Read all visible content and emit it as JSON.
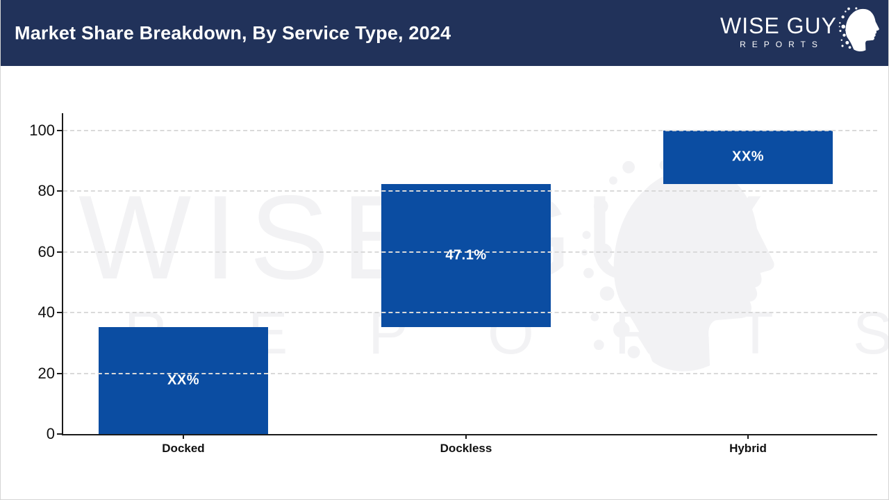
{
  "header": {
    "title": "Market Share Breakdown, By Service Type, 2024",
    "logo": {
      "wordmark": "WISE GUY",
      "sub": "REPORTS"
    }
  },
  "chart_data": {
    "type": "bar",
    "variant": "floating-segment-waterfall",
    "title": "Market Share Breakdown, By Service Type, 2024",
    "categories": [
      "Docked",
      "Dockless",
      "Hybrid"
    ],
    "series": [
      {
        "name": "Market share by service type",
        "segments": [
          {
            "category": "Docked",
            "start": 0,
            "end": 35.3,
            "label": "XX%"
          },
          {
            "category": "Dockless",
            "start": 35.3,
            "end": 82.4,
            "label": "47.1%"
          },
          {
            "category": "Hybrid",
            "start": 82.4,
            "end": 100,
            "label": "XX%"
          }
        ]
      }
    ],
    "ylim": [
      0,
      100
    ],
    "yticks": [
      0,
      20,
      40,
      60,
      80,
      100
    ],
    "xlabel": "",
    "ylabel": "",
    "grid": "horizontal-dashed",
    "legend_position": "none",
    "bar_color": "#0b4da2",
    "bar_label_color": "#ffffff"
  },
  "watermark": {
    "line1": "WISE GUY",
    "line2": "R E P O R T S"
  },
  "colors": {
    "header_bg": "#21325a",
    "axis": "#1a1a1a",
    "grid": "#d9d9d9",
    "watermark": "#f2f2f4",
    "bar": "#0b4da2"
  }
}
